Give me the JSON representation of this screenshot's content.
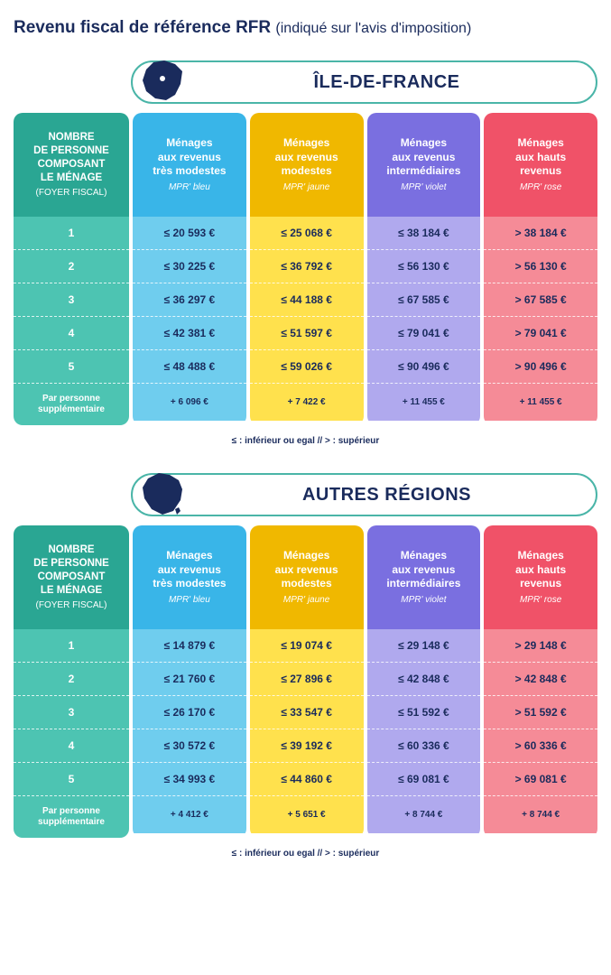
{
  "title_main": "Revenu fiscal de référence RFR",
  "title_sub": "(indiqué sur l'avis d'imposition)",
  "legend": "≤ : inférieur ou egal // > : supérieur",
  "colors": {
    "navy": "#1a2b5c",
    "teal_border": "#4ab5a8",
    "first_head": "#2aa693",
    "first_body": "#4dc4b2",
    "blue_head": "#39b5e8",
    "blue_body": "#6fcdee",
    "yellow_head": "#f0b800",
    "yellow_body": "#ffe14d",
    "violet_head": "#7a6fe0",
    "violet_body": "#b0a9ee",
    "rose_head": "#f05268",
    "rose_body": "#f58b97"
  },
  "first_col": {
    "head_l1": "NOMBRE",
    "head_l2": "DE PERSONNE",
    "head_l3": "COMPOSANT",
    "head_l4": "LE MÉNAGE",
    "head_ff": "(FOYER FISCAL)",
    "rows": [
      "1",
      "2",
      "3",
      "4",
      "5"
    ],
    "supp": "Par personne supplémentaire"
  },
  "category_heads": [
    {
      "l1": "Ménages",
      "l2": "aux revenus",
      "l3": "très modestes",
      "sub": "MPR' bleu"
    },
    {
      "l1": "Ménages",
      "l2": "aux revenus",
      "l3": "modestes",
      "sub": "MPR' jaune"
    },
    {
      "l1": "Ménages",
      "l2": "aux revenus",
      "l3": "intermédiaires",
      "sub": "MPR' violet"
    },
    {
      "l1": "Ménages",
      "l2": "aux hauts",
      "l3": "revenus",
      "sub": "MPR' rose"
    }
  ],
  "regions": [
    {
      "title": "ÎLE-DE-FRANCE",
      "map": "idf",
      "columns": [
        {
          "rows": [
            "≤ 20 593 €",
            "≤ 30 225 €",
            "≤ 36 297 €",
            "≤ 42 381 €",
            "≤ 48 488 €"
          ],
          "supp": "+ 6 096 €"
        },
        {
          "rows": [
            "≤ 25 068 €",
            "≤ 36 792 €",
            "≤ 44 188 €",
            "≤ 51 597 €",
            "≤ 59 026 €"
          ],
          "supp": "+ 7 422 €"
        },
        {
          "rows": [
            "≤ 38 184 €",
            "≤ 56 130 €",
            "≤ 67 585 €",
            "≤ 79 041 €",
            "≤ 90 496 €"
          ],
          "supp": "+ 11 455 €"
        },
        {
          "rows": [
            "> 38 184 €",
            "> 56 130 €",
            "> 67 585 €",
            "> 79 041 €",
            "> 90 496 €"
          ],
          "supp": "+ 11 455 €"
        }
      ]
    },
    {
      "title": "AUTRES RÉGIONS",
      "map": "france",
      "columns": [
        {
          "rows": [
            "≤ 14 879 €",
            "≤ 21 760 €",
            "≤ 26 170 €",
            "≤ 30 572 €",
            "≤ 34 993 €"
          ],
          "supp": "+ 4 412 €"
        },
        {
          "rows": [
            "≤ 19 074 €",
            "≤ 27 896 €",
            "≤ 33 547 €",
            "≤ 39 192 €",
            "≤ 44 860 €"
          ],
          "supp": "+ 5 651 €"
        },
        {
          "rows": [
            "≤ 29 148 €",
            "≤ 42 848 €",
            "≤ 51 592 €",
            "≤ 60 336 €",
            "≤ 69 081 €"
          ],
          "supp": "+ 8 744 €"
        },
        {
          "rows": [
            "> 29 148 €",
            "> 42 848 €",
            "> 51 592 €",
            "> 60 336 €",
            "> 69 081 €"
          ],
          "supp": "+ 8 744 €"
        }
      ]
    }
  ]
}
